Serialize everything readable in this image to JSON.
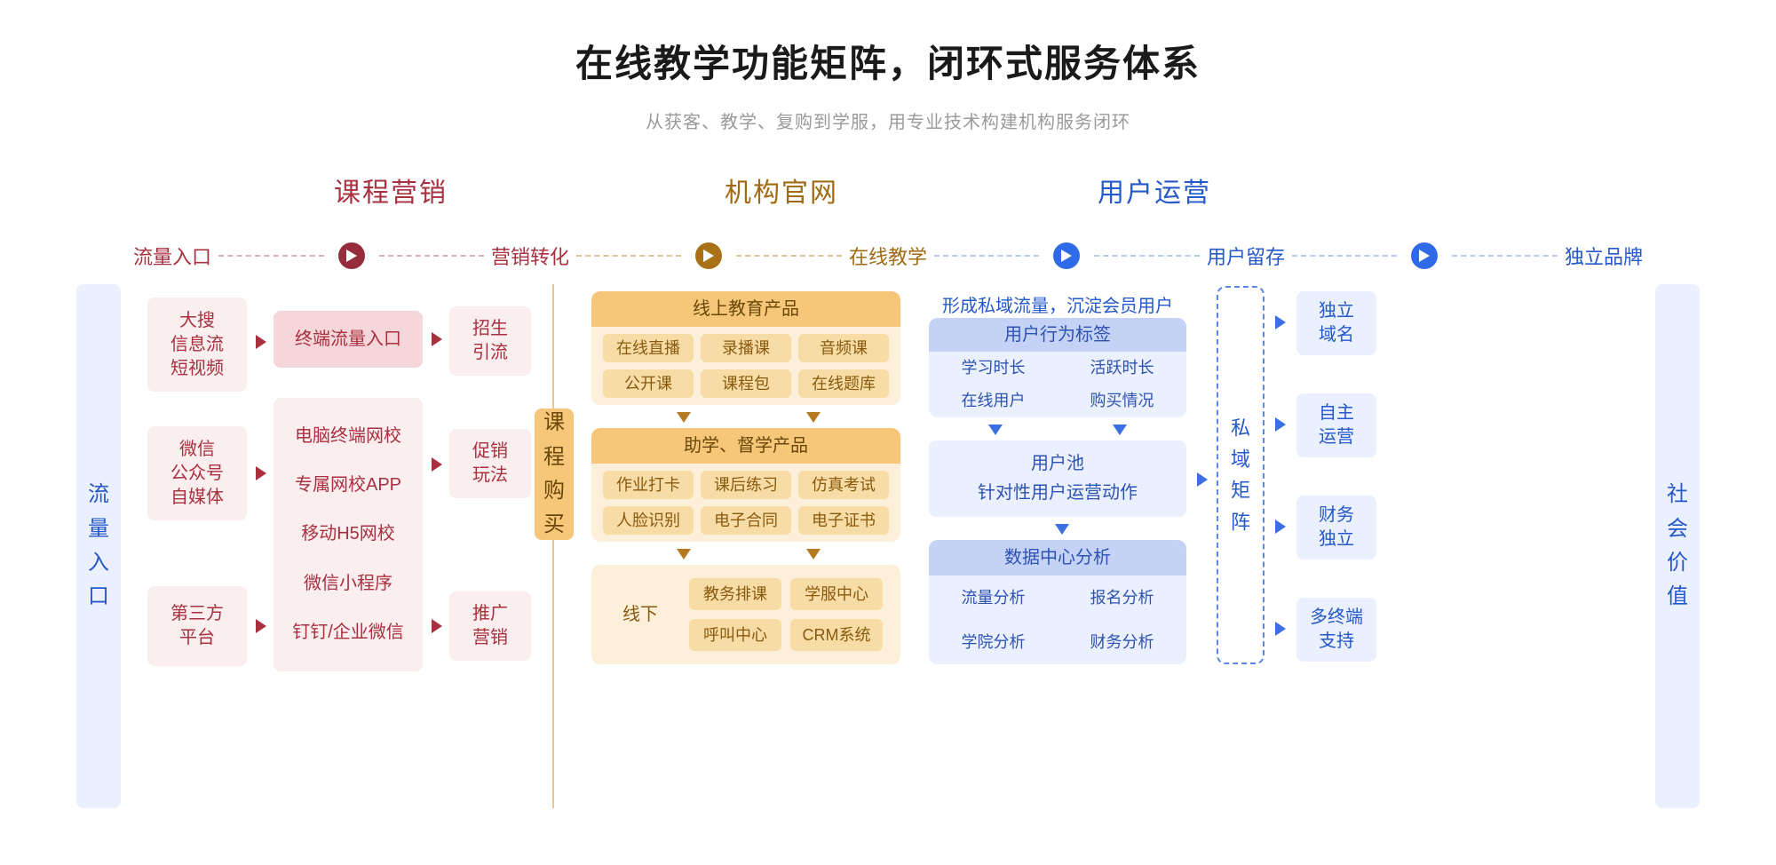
{
  "colors": {
    "red_text": "#a8303f",
    "red_bg_light": "#fbeeef",
    "red_bg_mid": "#f5d6da",
    "red_arrow": "#942c3c",
    "brown_text": "#a16a14",
    "brown_circle": "#aa7218",
    "orange_bg_deep": "#f6c778",
    "orange_bg_light": "#fdf0da",
    "orange_text": "#a36915",
    "orange_arrow": "#b57a20",
    "blue_text": "#2558c9",
    "blue_circle": "#2f6be8",
    "blue_bg_light": "#eaf0fd",
    "blue_bg_mid": "#c4d2f5",
    "blue_bg_deep": "#b9c8f1",
    "blue_arrow": "#3b6ee0",
    "blue_border": "#5a88e6",
    "gray_line": "#d9d9d9"
  },
  "header": {
    "title": "在线教学功能矩阵，闭环式服务体系",
    "subtitle": "从获客、教学、复购到学服，用专业技术构建机构服务闭环"
  },
  "sections": {
    "s1": "课程营销",
    "s2": "机构官网",
    "s3": "用户运营"
  },
  "flow": {
    "f1": "流量入口",
    "f2": "营销转化",
    "f3": "在线教学",
    "f4": "用户留存",
    "f5": "独立品牌"
  },
  "pillars": {
    "left": "流量入口",
    "mid": "课程购买",
    "matrix": "私域矩阵",
    "right": "社会价值"
  },
  "sources": {
    "src1": "大搜\n信息流\n短视频",
    "src2": "微信\n公众号\n自媒体",
    "src3": "第三方\n平台"
  },
  "terminals": {
    "t0": "终端流量入口",
    "t1": "电脑终端网校",
    "t2": "专属网校APP",
    "t3": "移动H5网校",
    "t4": "微信小程序",
    "t5": "钉钉/企业微信"
  },
  "convert": {
    "c1": "招生\n引流",
    "c2": "促销\n玩法",
    "c3": "推广\n营销"
  },
  "online_edu": {
    "header": "线上教育产品",
    "p1": "在线直播",
    "p2": "录播课",
    "p3": "音频课",
    "p4": "公开课",
    "p5": "课程包",
    "p6": "在线题库"
  },
  "assist": {
    "header": "助学、督学产品",
    "a1": "作业打卡",
    "a2": "课后练习",
    "a3": "仿真考试",
    "a4": "人脸识别",
    "a5": "电子合同",
    "a6": "电子证书"
  },
  "offline": {
    "label": "线下",
    "o1": "教务排课",
    "o2": "学服中心",
    "o3": "呼叫中心",
    "o4": "CRM系统"
  },
  "behavior": {
    "note": "形成私域流量，沉淀会员用户",
    "header": "用户行为标签",
    "b1": "学习时长",
    "b2": "活跃时长",
    "b3": "在线用户",
    "b4": "购买情况"
  },
  "pool": {
    "p1": "用户池",
    "p2": "针对性用户运营动作"
  },
  "datacenter": {
    "header": "数据中心分析",
    "d1": "流量分析",
    "d2": "报名分析",
    "d3": "学院分析",
    "d4": "财务分析"
  },
  "brand": {
    "b1": "独立\n域名",
    "b2": "自主\n运营",
    "b3": "财务\n独立",
    "b4": "多终端\n支持"
  }
}
